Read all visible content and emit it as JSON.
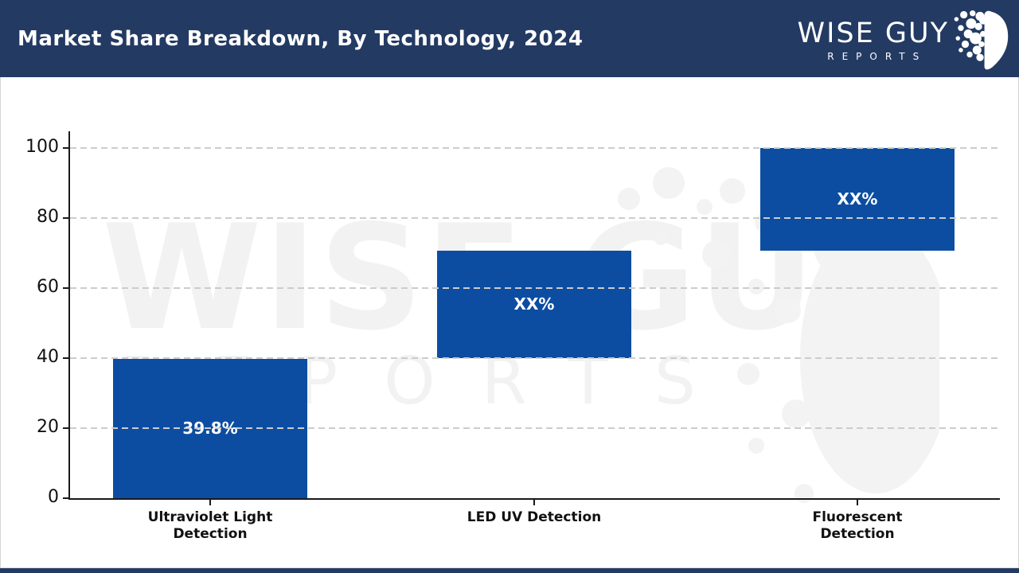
{
  "header": {
    "title": "Market Share Breakdown, By Technology, 2024",
    "bg_color": "#233A63",
    "logo": {
      "line1": "WISE GUY",
      "line2": "REPORTS"
    }
  },
  "watermark": {
    "line1": "WISE GUY",
    "line2": "REPORTS"
  },
  "chart_data": {
    "type": "bar",
    "subtype": "waterfall-floating-bars",
    "title": "Market Share Breakdown, By Technology, 2024",
    "xlabel": "",
    "ylabel": "",
    "ylim": [
      0,
      100
    ],
    "yticks": [
      0,
      20,
      40,
      60,
      80,
      100
    ],
    "grid": "horizontal dashed",
    "bar_color": "#0C4DA2",
    "label_color": "#ffffff",
    "categories": [
      [
        "Ultraviolet Light",
        "Detection"
      ],
      [
        "LED UV Detection"
      ],
      [
        "Fluorescent",
        "Detection"
      ]
    ],
    "segments": [
      {
        "category": "Ultraviolet Light Detection",
        "start": 0,
        "end": 39.8,
        "label": "39.8%"
      },
      {
        "category": "LED UV Detection",
        "start": 40,
        "end": 70.7,
        "label": "XX%"
      },
      {
        "category": "Fluorescent Detection",
        "start": 70.7,
        "end": 100,
        "label": "XX%"
      }
    ]
  }
}
